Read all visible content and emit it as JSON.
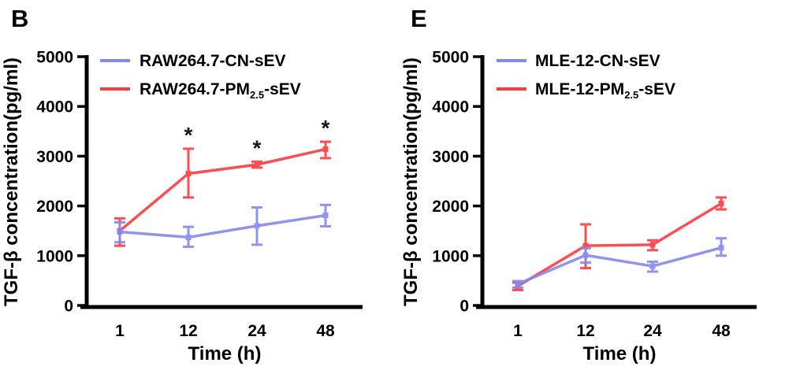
{
  "figure": {
    "background": "#ffffff",
    "axis_color": "#000000",
    "text_color": "#000000"
  },
  "chart_data": [
    {
      "panel": "B",
      "type": "line",
      "title": "",
      "xlabel": "Time (h)",
      "ylabel": "TGF-β concentration(pg/ml)",
      "x_categories": [
        "1",
        "12",
        "24",
        "48"
      ],
      "ylim": [
        0,
        5000
      ],
      "yticks": [
        0,
        1000,
        2000,
        3000,
        4000,
        5000
      ],
      "grid": false,
      "error_bars": true,
      "legend_position": "top-left-inside",
      "series": [
        {
          "name": "RAW264.7-CN-sEV",
          "name_parts": [
            {
              "t": "RAW264.7-CN-sEV"
            }
          ],
          "color": "#8787f0",
          "values": [
            1480,
            1370,
            1600,
            1810
          ],
          "err_plus": [
            190,
            210,
            370,
            210
          ],
          "err_minus": [
            210,
            190,
            380,
            220
          ],
          "annotations": []
        },
        {
          "name": "RAW264.7-PM2.5-sEV",
          "name_parts": [
            {
              "t": "RAW264.7-PM"
            },
            {
              "t": "2.5",
              "sub": true
            },
            {
              "t": "-sEV"
            }
          ],
          "color": "#fa3b40",
          "values": [
            1500,
            2650,
            2830,
            3140
          ],
          "err_plus": [
            250,
            500,
            60,
            150
          ],
          "err_minus": [
            300,
            480,
            60,
            180
          ],
          "annotations": [
            {
              "x_index": 1,
              "text": "*"
            },
            {
              "x_index": 2,
              "text": "*"
            },
            {
              "x_index": 3,
              "text": "*"
            }
          ]
        }
      ]
    },
    {
      "panel": "E",
      "type": "line",
      "title": "",
      "xlabel": "Time (h)",
      "ylabel": "TGF-β concentration(pg/ml)",
      "x_categories": [
        "1",
        "12",
        "24",
        "48"
      ],
      "ylim": [
        0,
        5000
      ],
      "yticks": [
        0,
        1000,
        2000,
        3000,
        4000,
        5000
      ],
      "grid": false,
      "error_bars": true,
      "legend_position": "top-left-inside",
      "series": [
        {
          "name": "MLE-12-CN-sEV",
          "name_parts": [
            {
              "t": "MLE-12-CN-sEV"
            }
          ],
          "color": "#8787f0",
          "values": [
            430,
            1010,
            790,
            1160
          ],
          "err_plus": [
            60,
            140,
            90,
            190
          ],
          "err_minus": [
            70,
            150,
            110,
            160
          ],
          "annotations": []
        },
        {
          "name": "MLE-12-PM2.5-sEV",
          "name_parts": [
            {
              "t": "MLE-12-PM"
            },
            {
              "t": "2.5",
              "sub": true
            },
            {
              "t": "-sEV"
            }
          ],
          "color": "#fa3b40",
          "values": [
            390,
            1200,
            1220,
            2050
          ],
          "err_plus": [
            70,
            430,
            90,
            120
          ],
          "err_minus": [
            80,
            450,
            110,
            120
          ],
          "annotations": []
        }
      ]
    }
  ]
}
